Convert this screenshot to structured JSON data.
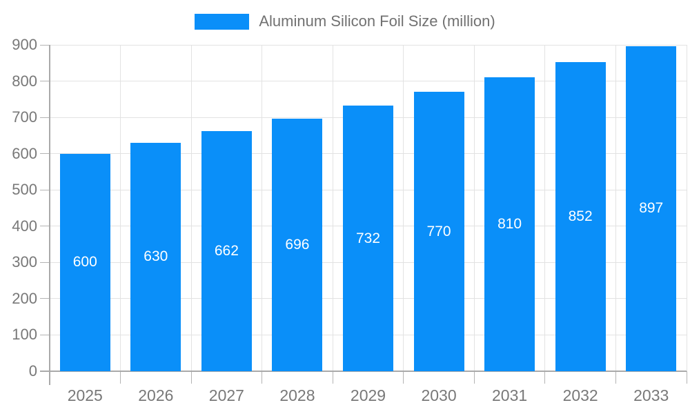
{
  "legend": {
    "label": "Aluminum Silicon Foil Size (million)"
  },
  "chart_data": {
    "type": "bar",
    "title": "Aluminum Silicon Foil Size (million)",
    "categories": [
      "2025",
      "2026",
      "2027",
      "2028",
      "2029",
      "2030",
      "2031",
      "2032",
      "2033"
    ],
    "series": [
      {
        "name": "Aluminum Silicon Foil Size (million)",
        "values": [
          600,
          630,
          662,
          696,
          732,
          770,
          810,
          852,
          897
        ]
      }
    ],
    "value_labels": [
      600,
      630,
      662,
      696,
      732,
      770,
      810,
      852,
      897
    ],
    "xlabel": "",
    "ylabel": "",
    "ylim": [
      0,
      900
    ],
    "ytick_step": 100,
    "yticks": [
      0,
      100,
      200,
      300,
      400,
      500,
      600,
      700,
      800,
      900
    ],
    "grid": true,
    "legend_position": "top-center",
    "value_label_position": "inside-middle"
  },
  "colors": {
    "bar": "#0a8ff9",
    "axis_line": "#a9a9a9",
    "tick": "#b3b3b3",
    "gridline": "#e2e2e2",
    "axis_text": "#787878",
    "legend_text": "#717171",
    "value_label_text": "#ffffff",
    "background": "#ffffff"
  }
}
